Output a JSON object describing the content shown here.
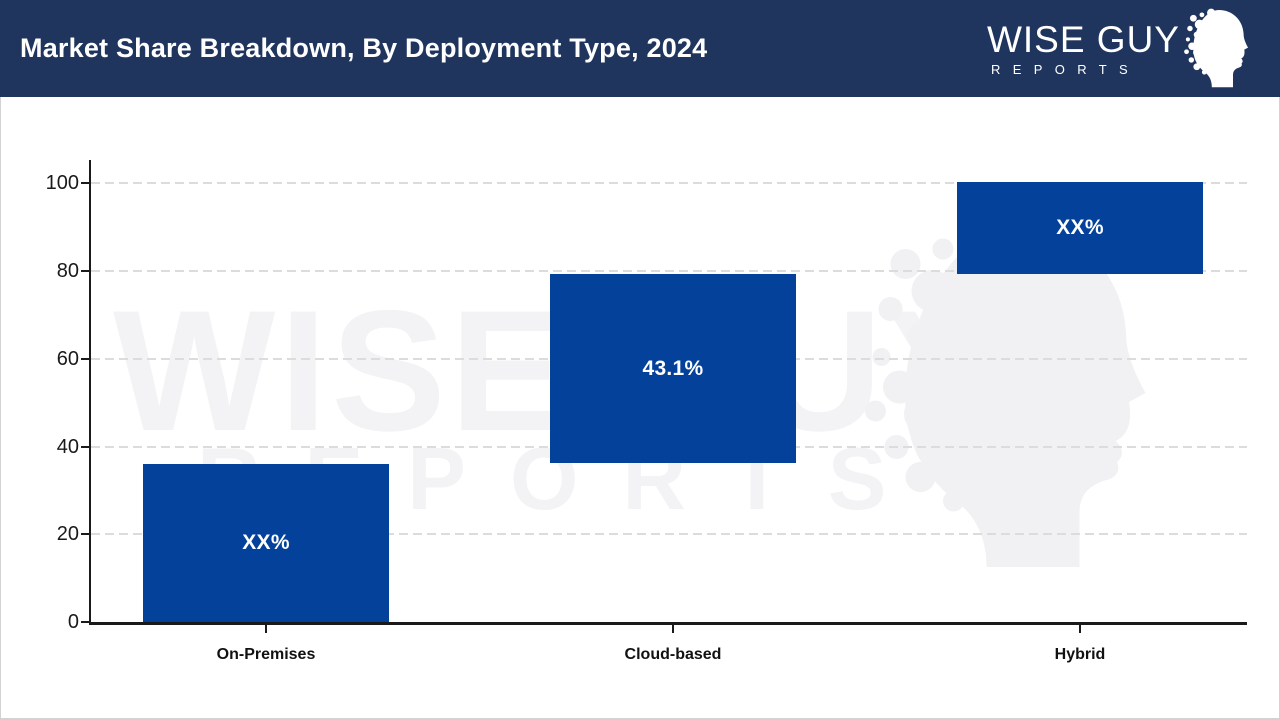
{
  "header": {
    "title": "Market Share Breakdown, By Deployment Type, 2024",
    "logo": {
      "name": "WISE GUY",
      "subname": "REPORTS"
    }
  },
  "watermark": {
    "line1": "WISE GUY",
    "line2": "REPORTS"
  },
  "chart_data": {
    "type": "bar",
    "subtype": "waterfall",
    "title": "Market Share Breakdown, By Deployment Type, 2024",
    "categories": [
      "On-Premises",
      "Cloud-based",
      "Hybrid"
    ],
    "bars": [
      {
        "category": "On-Premises",
        "start": 0,
        "end": 36,
        "label": "XX%"
      },
      {
        "category": "Cloud-based",
        "start": 36.2,
        "end": 79.3,
        "label": "43.1%"
      },
      {
        "category": "Hybrid",
        "start": 79.3,
        "end": 100.3,
        "label": "XX%"
      }
    ],
    "yticks": [
      0,
      20,
      40,
      60,
      80,
      100
    ],
    "ylim": [
      0,
      106
    ],
    "xlabel": "",
    "ylabel": "",
    "grid": "horizontal-dashed",
    "legend": "none",
    "colors": {
      "bar": "#04419B",
      "bar_label": "#FFFFFF",
      "header_bg": "#1F355E",
      "axis": "#1A1A1A",
      "gridline": "#DCDCDC",
      "watermark": "#F3F3F5"
    }
  }
}
